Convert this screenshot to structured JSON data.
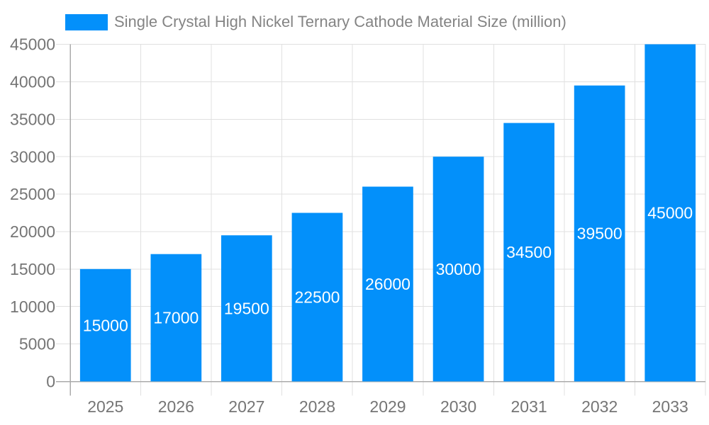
{
  "legend": {
    "label": "Single Crystal High Nickel Ternary Cathode Material Size (million)"
  },
  "chart_data": {
    "type": "bar",
    "title": "Single Crystal High Nickel Ternary Cathode Material Size (million)",
    "series_name": "Single Crystal High Nickel Ternary Cathode Material Size (million)",
    "categories": [
      "2025",
      "2026",
      "2027",
      "2028",
      "2029",
      "2030",
      "2031",
      "2032",
      "2033"
    ],
    "values": [
      15000,
      17000,
      19500,
      22500,
      26000,
      30000,
      34500,
      39500,
      45000
    ],
    "data_labels": [
      "15000",
      "17000",
      "19500",
      "22500",
      "26000",
      "30000",
      "34500",
      "39500",
      "45000"
    ],
    "xlabel": "",
    "ylabel": "",
    "ylim": [
      0,
      45000
    ],
    "yticks": [
      0,
      5000,
      10000,
      15000,
      20000,
      25000,
      30000,
      35000,
      40000,
      45000
    ],
    "ytick_labels": [
      "0",
      "5000",
      "10000",
      "15000",
      "20000",
      "25000",
      "30000",
      "35000",
      "40000",
      "45000"
    ],
    "grid": true,
    "legend_position": "top-left",
    "colors": {
      "bar": "#0390fa",
      "grid_line": "#e0e0e0",
      "axis_line": "#ababab",
      "tick_label": "#757575",
      "legend_text": "#848484",
      "data_label": "#ffffff",
      "background": "#ffffff"
    }
  }
}
